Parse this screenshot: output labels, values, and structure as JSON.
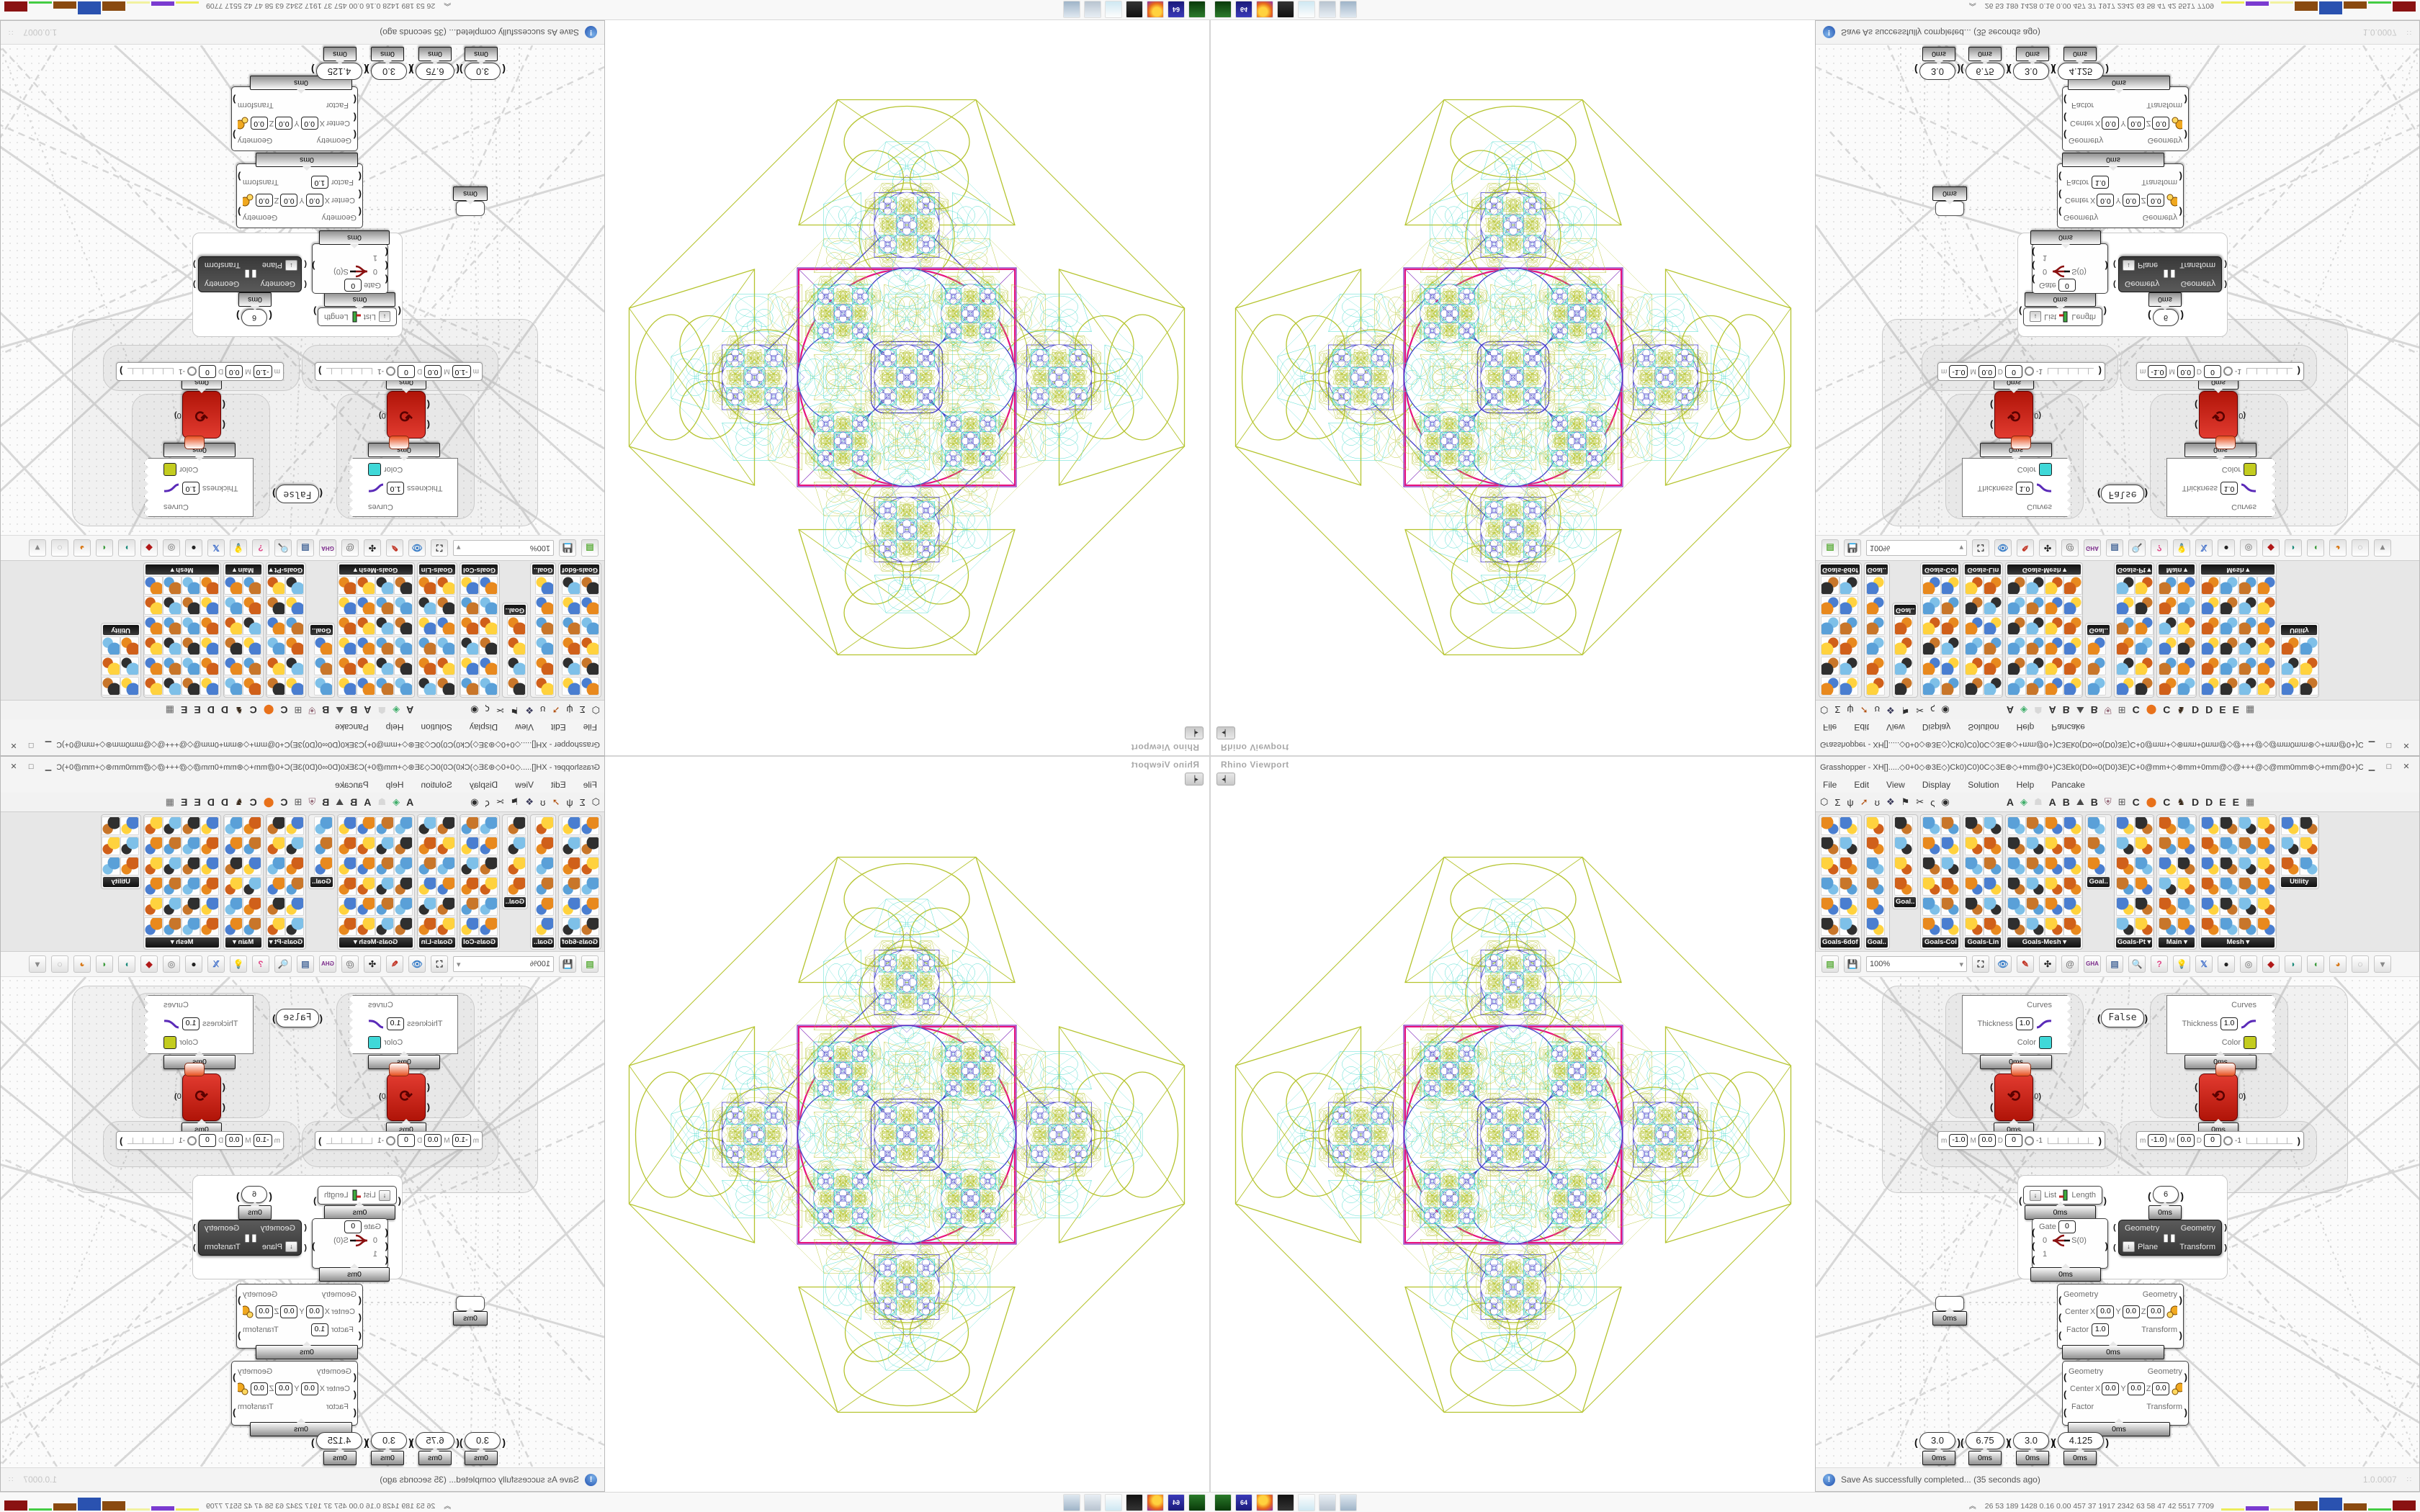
{
  "viewport": {
    "label": "Rhino Viewport",
    "collapse_glyph": "◂▏"
  },
  "grasshopper": {
    "title": "Grasshopper - XH[].....◇0+0◇⊛3E◇)Ck0)C0)0C◇3E⊛◇+mm@0+)C3Ek0(D0∞0(D0)3E)C+0@mm+◇⊛mm+0mm@◇@+++@◇@mm0mm⊛◇+mm@0+)C3Ek0(D∞0...",
    "window_buttons": {
      "minimize": "▁",
      "maximize": "□",
      "close": "✕"
    },
    "menu": [
      "File",
      "Edit",
      "View",
      "Display",
      "Solution",
      "Help",
      "Pancake"
    ],
    "tabstrip": [
      {
        "k": "icon",
        "g": "⬡",
        "c": "#2d2d2d"
      },
      {
        "k": "icon",
        "g": "Σ",
        "c": "#2d2d2d"
      },
      {
        "k": "icon",
        "g": "ψ",
        "c": "#2d2d2d"
      },
      {
        "k": "icon",
        "g": "➚",
        "c": "#b05010"
      },
      {
        "k": "icon",
        "g": "ʊ",
        "c": "#2d2d2d"
      },
      {
        "k": "icon",
        "g": "❖",
        "c": "#3a3a5a"
      },
      {
        "k": "icon",
        "g": "⚑",
        "c": "#2d2d2d"
      },
      {
        "k": "icon",
        "g": "✂",
        "c": "#2d2d2d"
      },
      {
        "k": "icon",
        "g": "ς",
        "c": "#2d2d2d"
      },
      {
        "k": "icon",
        "g": "◉",
        "c": "#2d2d2d"
      },
      {
        "k": "gap"
      },
      {
        "k": "letter",
        "g": "A"
      },
      {
        "k": "icon",
        "g": "◈",
        "c": "#3fae6a"
      },
      {
        "k": "icon",
        "g": "☗",
        "c": "#d8d8d8"
      },
      {
        "k": "letter",
        "g": "A"
      },
      {
        "k": "letter",
        "g": "B"
      },
      {
        "k": "icon",
        "g": "⛰",
        "c": "#4a4a4a"
      },
      {
        "k": "letter",
        "g": "B"
      },
      {
        "k": "icon",
        "g": "⛨",
        "c": "#8a5a6a"
      },
      {
        "k": "icon",
        "g": "⊞",
        "c": "#555"
      },
      {
        "k": "letter",
        "g": "C"
      },
      {
        "k": "icon",
        "g": "⬤",
        "c": "#e8711a"
      },
      {
        "k": "letter",
        "g": "C"
      },
      {
        "k": "icon",
        "g": "♞",
        "c": "#3a2a1a"
      },
      {
        "k": "letter",
        "g": "D"
      },
      {
        "k": "letter",
        "g": "D"
      },
      {
        "k": "letter",
        "g": "E"
      },
      {
        "k": "letter",
        "g": "E"
      },
      {
        "k": "icon",
        "g": "▦",
        "c": "#666"
      }
    ],
    "palette_groups": [
      {
        "label": "Goals-6dof",
        "cols": 2,
        "rows": 6,
        "arrow": ""
      },
      {
        "label": "Goal..",
        "cols": 1,
        "rows": 6,
        "arrow": ""
      },
      {
        "label": "Goal..",
        "cols": 1,
        "rows": 4,
        "arrow": ""
      },
      {
        "label": "Goals-Col",
        "cols": 2,
        "rows": 6,
        "arrow": ""
      },
      {
        "label": "Goals-Lin",
        "cols": 2,
        "rows": 6,
        "arrow": ""
      },
      {
        "label": "Goals-Mesh",
        "cols": 4,
        "rows": 6,
        "arrow": "▾"
      },
      {
        "label": "Goal..",
        "cols": 1,
        "rows": 3,
        "arrow": ""
      },
      {
        "label": "Goals-Pt",
        "cols": 2,
        "rows": 6,
        "arrow": "▾"
      },
      {
        "label": "Main",
        "cols": 2,
        "rows": 6,
        "arrow": "▾"
      },
      {
        "label": "Mesh",
        "cols": 4,
        "rows": 6,
        "arrow": "▾"
      },
      {
        "label": "Utility",
        "cols": 2,
        "rows": 3,
        "arrow": ""
      }
    ],
    "toolbar": {
      "zoom": "100%",
      "items": [
        {
          "name": "new-document-icon",
          "g": "▤",
          "c": "#5fae3f"
        },
        {
          "name": "save-icon",
          "g": "💾",
          "c": "#3a5fc0"
        },
        {
          "name": "zoom-combo",
          "g": "",
          "c": ""
        },
        {
          "name": "zoom-frame-icon",
          "g": "⛶",
          "c": "#222"
        },
        {
          "name": "preview-eye-icon",
          "g": "👁",
          "c": "#3a7ec8"
        },
        {
          "name": "sketch-pen-icon",
          "g": "✎",
          "c": "#c03020"
        },
        {
          "name": "moth-icon",
          "g": "✣",
          "c": "#222"
        },
        {
          "name": "mail-icon",
          "g": "@",
          "c": "#777"
        },
        {
          "name": "gha-icon",
          "g": "GHA",
          "c": "#7a2a8a"
        },
        {
          "name": "report-icon",
          "g": "▤",
          "c": "#4a6a9a"
        },
        {
          "name": "finder-icon",
          "g": "🔍",
          "c": "#3a6aa0"
        },
        {
          "name": "surprise-box-icon",
          "g": "?",
          "c": "#e04a8a"
        },
        {
          "name": "idea-bulb-icon",
          "g": "💡",
          "c": "#8a6ac8"
        },
        {
          "name": "dna-icon",
          "g": "𝕏",
          "c": "#3a6ac8"
        },
        {
          "name": "blob-dark-icon",
          "g": "●",
          "c": "#222"
        },
        {
          "name": "blob-rings-icon",
          "g": "◎",
          "c": "#999"
        },
        {
          "name": "blob-red-icon",
          "g": "◆",
          "c": "#b01818"
        },
        {
          "name": "snail-teal-icon",
          "g": "◗",
          "c": "#1a8a7a"
        },
        {
          "name": "snail-green-icon",
          "g": "◖",
          "c": "#3a9a3a"
        },
        {
          "name": "ball-orange-icon",
          "g": "◕",
          "c": "#d87a1a"
        },
        {
          "name": "selection-circle-icon",
          "g": "◌",
          "c": "#888"
        },
        {
          "name": "toolbar-more-dropdown",
          "g": "▾",
          "c": "#888"
        }
      ]
    },
    "status": {
      "message": "Save As successfully completed... (35 seconds ago)",
      "version": "1.0.0007",
      "grip": "∷"
    },
    "canvas": {
      "ms": "0ms",
      "panel": {
        "title": "Curves",
        "thickness_label": "Thickness",
        "thickness": "1.0",
        "color_label": "Color",
        "swatch_left": "#3fd8d8",
        "swatch_right": "#c3cc1f"
      },
      "false_toggle": "False",
      "gene_slider": {
        "m_label": "m",
        "m": "-1.0",
        "max_label": "M",
        "max": "0.0",
        "d_label": "D",
        "d": "0",
        "tick": "-1"
      },
      "list_length": {
        "left": "List",
        "right": "Length"
      },
      "six_value": "6",
      "gate": {
        "label": "Gate",
        "value": "0",
        "row0": "0",
        "row1": "1",
        "out": "S(0)"
      },
      "dark_comp": {
        "in1": "Geometry",
        "in2": "Plane",
        "out1": "Geometry",
        "out2": "Transform",
        "glyph": "▮▮",
        "btn": "↓"
      },
      "scale1": {
        "g": "Geometry",
        "center": "Center",
        "x": "X",
        "xv": "0.0",
        "y": "Y",
        "yv": "0.0",
        "z": "Z",
        "zv": "0.0",
        "factor": "Factor",
        "fv": "1.0",
        "og": "Geometry",
        "ot": "Transform"
      },
      "scale2": {
        "g": "Geometry",
        "center": "Center",
        "x": "X",
        "xv": "0.0",
        "y": "Y",
        "yv": "0.0",
        "z": "Z",
        "zv": "0.0",
        "factor": "Factor",
        "og": "Geometry",
        "ot": "Transform"
      },
      "capsules": [
        "3.0",
        "6.75",
        "3.0",
        "4.125"
      ]
    }
  },
  "taskbar": {
    "apps": [
      "display-green-icon",
      "floppy-64-icon",
      "firefox-icon",
      "inkscape-icon",
      "notepad-icon",
      "calculator-icon",
      "printer-icon"
    ],
    "monitor": {
      "chevron": "︽",
      "numbers": "26   53   189 1428 0.16 0.00 457   37   1917 2342   63   58   47   42   5517 7709",
      "bars": [
        {
          "c": "#ecec5a",
          "h": 3
        },
        {
          "c": "#7a3bd0",
          "h": 6
        },
        {
          "c": "#f2f2a0",
          "h": 3
        },
        {
          "c": "#8a4a10",
          "h": 13
        },
        {
          "c": "#2a52b0",
          "h": 18
        },
        {
          "c": "#8a4a10",
          "h": 10
        },
        {
          "c": "#44cc44",
          "h": 3
        },
        {
          "c": "#8a1212",
          "h": 14
        }
      ]
    }
  },
  "mandala": {
    "green": "#b5c42f",
    "blue": "#4038c8",
    "cyan": "#3fd8ca",
    "magenta": "#e8127e",
    "purple": "#8a35c0"
  }
}
